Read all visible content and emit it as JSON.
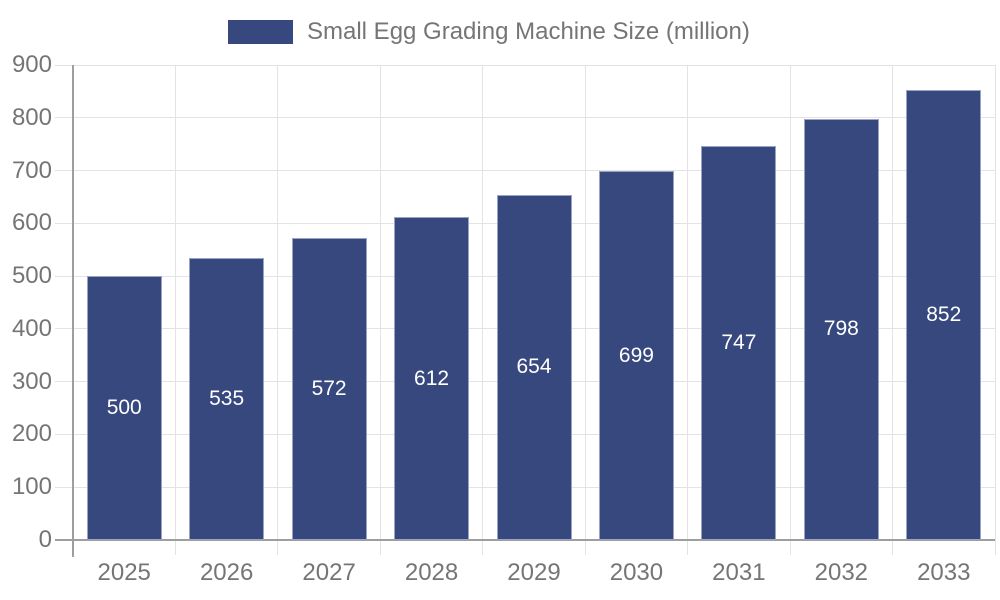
{
  "chart_data": {
    "type": "bar",
    "title": "Small Egg Grading Machine Size (million)",
    "categories": [
      "2025",
      "2026",
      "2027",
      "2028",
      "2029",
      "2030",
      "2031",
      "2032",
      "2033"
    ],
    "values": [
      500,
      535,
      572,
      612,
      654,
      699,
      747,
      798,
      852
    ],
    "xlabel": "",
    "ylabel": "",
    "ylim": [
      0,
      900
    ],
    "ytick_step": 100,
    "ytick_labels": [
      "0",
      "100",
      "200",
      "300",
      "400",
      "500",
      "600",
      "700",
      "800",
      "900"
    ],
    "grid": true,
    "legend_position": "top",
    "value_labels_inside_bars": true,
    "colors": {
      "bar": "#36487e",
      "bar_label": "#ffffff",
      "grid": "#e3e3e3",
      "axis": "#9e9e9e",
      "tick_label": "#757575",
      "legend_label": "#757575",
      "background": "#ffffff"
    }
  },
  "legend": {
    "label": "Small Egg Grading Machine Size (million)"
  }
}
